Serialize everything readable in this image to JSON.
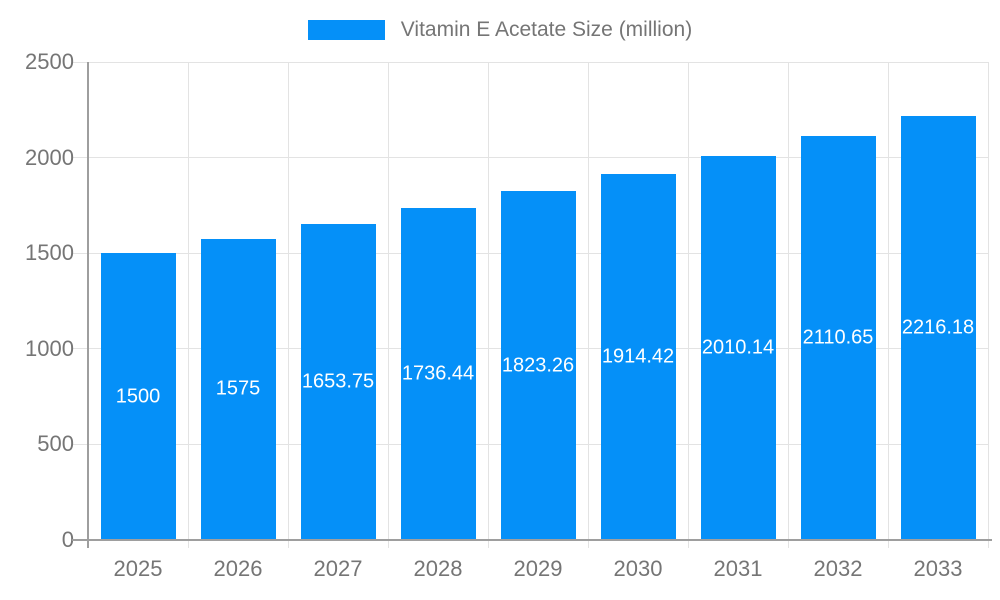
{
  "legend": {
    "label": "Vitamin E Acetate Size (million)"
  },
  "chart_data": {
    "type": "bar",
    "title": "Vitamin E Acetate Size (million)",
    "categories": [
      "2025",
      "2026",
      "2027",
      "2028",
      "2029",
      "2030",
      "2031",
      "2032",
      "2033"
    ],
    "values": [
      1500,
      1575,
      1653.75,
      1736.44,
      1823.26,
      1914.42,
      2010.14,
      2110.65,
      2216.18
    ],
    "value_labels": [
      "1500",
      "1575",
      "1653.75",
      "1736.44",
      "1823.26",
      "1914.42",
      "2010.14",
      "2110.65",
      "2216.18"
    ],
    "xlabel": "",
    "ylabel": "",
    "ylim": [
      0,
      2500
    ],
    "yticks": [
      0,
      500,
      1000,
      1500,
      2000,
      2500
    ],
    "grid": true,
    "legend_position": "top",
    "value_labels_position": "center-of-bar",
    "colors": {
      "bar": "#0590f8",
      "grid": "#e3e3e3",
      "axis": "#9e9e9e",
      "tick_text": "#757575",
      "value_label_text": "#ffffff",
      "background": "#ffffff"
    }
  }
}
